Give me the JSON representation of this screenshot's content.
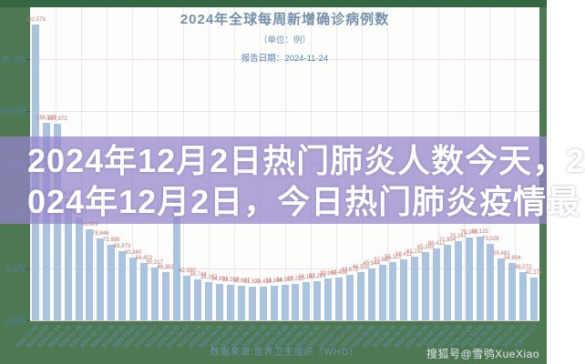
{
  "palette": {
    "background_green": "#4d7852",
    "top_strip_green": "#336641",
    "plot_background": "#fdfdfc",
    "bar_fill": "#aac3de",
    "bar_value_label": "#c4716c",
    "axis_tick_blue": "#4d80b6",
    "title_blue_gray": "#7390aa",
    "overlay_purple": "rgba(150,134,204,0.74)",
    "overlay_text": "#ffffff"
  },
  "header": {
    "title": "2024年全球每周新增确诊病例数",
    "subtitle": "（单位：例）",
    "report_date": "报告日期：2024-11-24"
  },
  "overlay": {
    "line1": "2024年12月2日热门肺炎人数今天，2",
    "line2": "024年12月2日，今日热门肺炎疫情最"
  },
  "footer": {
    "source": "数据来源:世界卫生组织（WHO）",
    "watermark": "搜狐号@雪鸮XueXiao"
  },
  "chart_data": {
    "type": "bar",
    "title": "2024年全球每周新增确诊病例数",
    "subtitle": "（单位：例）",
    "annotation": "报告日期：2024-11-24",
    "xlabel": "",
    "ylabel": "",
    "ylim": [
      0,
      300000
    ],
    "y_ticks": [
      "0.0万",
      "5.0万",
      "10.0万",
      "15.0万",
      "20.0万",
      "25.0万"
    ],
    "y_tick_values": [
      0,
      50000,
      100000,
      150000,
      200000,
      250000
    ],
    "grid": true,
    "legend": "none",
    "categories": [
      "2023-12-31",
      "2024-01-07",
      "2024-01-14",
      "2024-01-21",
      "2024-01-28",
      "2024-02-04",
      "2024-02-11",
      "2024-02-18",
      "2024-02-25",
      "2024-03-03",
      "2024-03-10",
      "2024-03-17",
      "2024-03-24",
      "2024-03-31",
      "2024-04-07",
      "2024-04-14",
      "2024-04-21",
      "2024-04-28",
      "2024-05-05",
      "2024-05-12",
      "2024-05-19",
      "2024-05-26",
      "2024-06-02",
      "2024-06-09",
      "2024-06-16",
      "2024-06-23",
      "2024-06-30",
      "2024-07-07",
      "2024-07-14",
      "2024-07-21",
      "2024-07-28",
      "2024-08-04",
      "2024-08-11",
      "2024-08-18",
      "2024-08-25",
      "2024-09-01",
      "2024-09-08",
      "2024-09-15",
      "2024-09-22",
      "2024-09-29",
      "2024-10-06",
      "2024-10-13",
      "2024-10-20",
      "2024-10-27",
      "2024-11-03",
      "2024-11-10",
      "2024-11-17"
    ],
    "values": [
      282579,
      188505,
      187972,
      116353,
      98214,
      86909,
      78646,
      71998,
      65873,
      60340,
      54402,
      50217,
      46381,
      114057,
      42590,
      38744,
      36152,
      34891,
      33508,
      32687,
      31925,
      32416,
      33164,
      34057,
      35212,
      36150,
      37284,
      39915,
      40489,
      43672,
      46358,
      49544,
      52680,
      55321,
      58412,
      61237,
      65283,
      68412,
      71954,
      75247,
      79245,
      80125,
      73028,
      59461,
      54804,
      46072,
      41174
    ]
  }
}
